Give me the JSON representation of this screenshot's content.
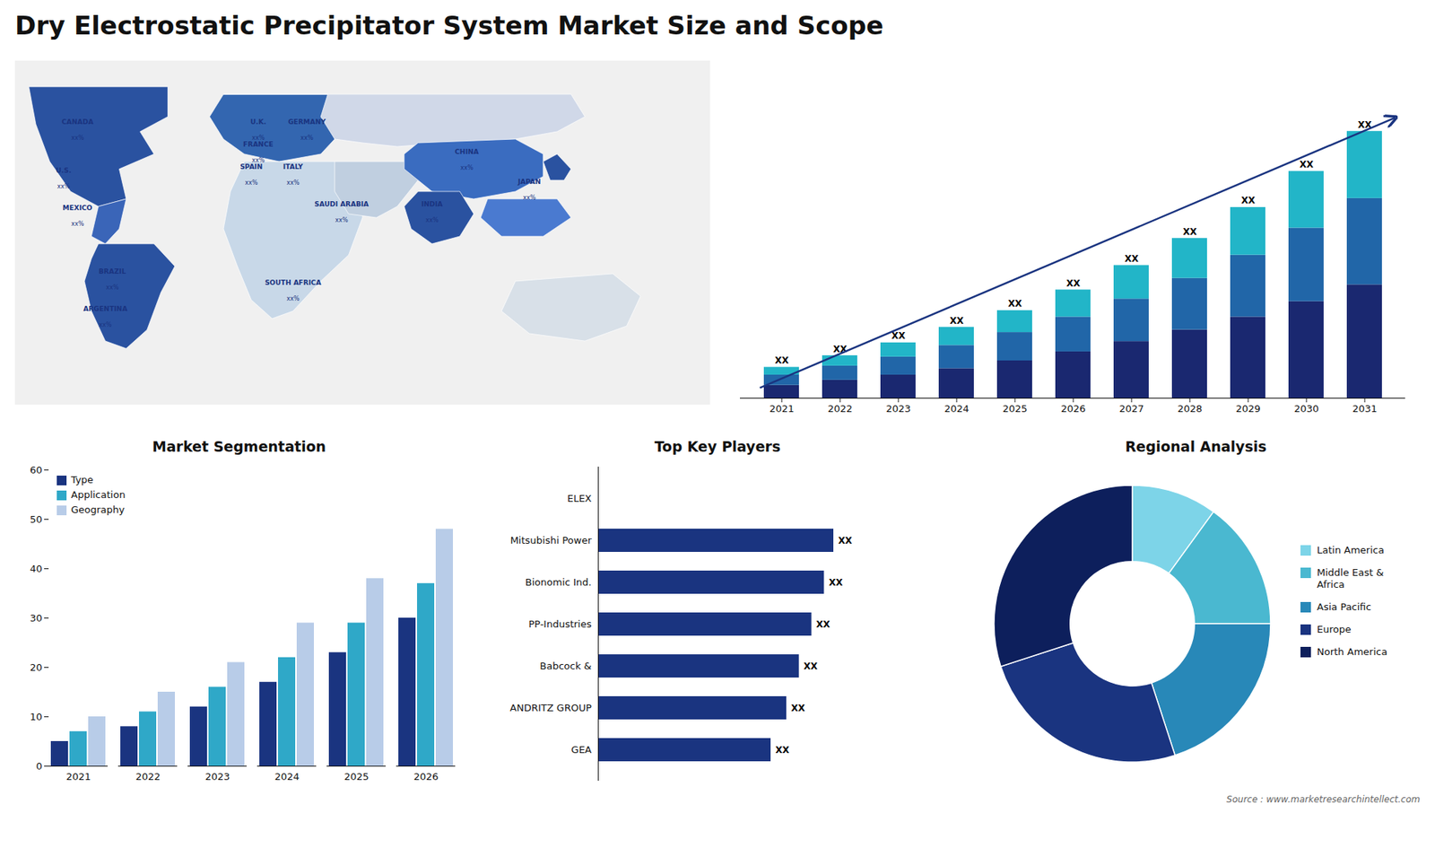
{
  "title": "Dry Electrostatic Precipitator System Market Size and Scope",
  "annotations": [
    "Source : www.marketresearchintellect.com"
  ],
  "chart_data": [
    {
      "type": "map",
      "labels": [
        {
          "name": "CANADA",
          "sub": "xx%"
        },
        {
          "name": "U.S.",
          "sub": "xx%"
        },
        {
          "name": "MEXICO",
          "sub": "xx%"
        },
        {
          "name": "BRAZIL",
          "sub": "xx%"
        },
        {
          "name": "ARGENTINA",
          "sub": "xx%"
        },
        {
          "name": "U.K.",
          "sub": "xx%"
        },
        {
          "name": "FRANCE",
          "sub": "xx%"
        },
        {
          "name": "SPAIN",
          "sub": "xx%"
        },
        {
          "name": "GERMANY",
          "sub": "xx%"
        },
        {
          "name": "ITALY",
          "sub": "xx%"
        },
        {
          "name": "SAUDI ARABIA",
          "sub": "xx%"
        },
        {
          "name": "SOUTH AFRICA",
          "sub": "xx%"
        },
        {
          "name": "CHINA",
          "sub": "xx%"
        },
        {
          "name": "JAPAN",
          "sub": "xx%"
        },
        {
          "name": "INDIA",
          "sub": "xx%"
        }
      ]
    },
    {
      "type": "bar",
      "stacked": true,
      "categories": [
        "2021",
        "2022",
        "2023",
        "2024",
        "2025",
        "2026",
        "2027",
        "2028",
        "2029",
        "2030",
        "2031"
      ],
      "series": [
        {
          "color": "#1a2870",
          "values": [
            1,
            1.4,
            1.8,
            2.3,
            2.9,
            3.6,
            4.4,
            5.3,
            6.3,
            7.5,
            8.8
          ]
        },
        {
          "color": "#2166a8",
          "values": [
            0.8,
            1.1,
            1.4,
            1.8,
            2.2,
            2.7,
            3.3,
            4.0,
            4.8,
            5.7,
            6.7
          ]
        },
        {
          "color": "#22b5c8",
          "values": [
            0.6,
            0.8,
            1.1,
            1.4,
            1.7,
            2.1,
            2.6,
            3.1,
            3.7,
            4.4,
            5.2
          ]
        }
      ],
      "ylim": [
        0,
        25.875
      ],
      "tick_labels": "x",
      "grid": false,
      "data_labels": true,
      "value_labels": [
        "XX",
        "XX",
        "XX",
        "XX",
        "XX",
        "XX",
        "XX",
        "XX",
        "XX",
        "XX",
        "XX"
      ]
    },
    {
      "type": "bar",
      "title": "Market Segmentation",
      "categories": [
        "2021",
        "2022",
        "2023",
        "2024",
        "2025",
        "2026"
      ],
      "series": [
        {
          "name": "Type",
          "color": "#1a3480",
          "values": [
            5,
            8,
            12,
            17,
            23,
            30
          ]
        },
        {
          "name": "Application",
          "color": "#2fa8c8",
          "values": [
            7,
            11,
            16,
            22,
            29,
            37
          ]
        },
        {
          "name": "Geography",
          "color": "#b8cce8",
          "values": [
            10,
            15,
            21,
            29,
            38,
            48
          ]
        }
      ],
      "ylim": [
        0,
        60
      ],
      "yticks": [
        0,
        10,
        20,
        30,
        40,
        50,
        60
      ],
      "grid": false,
      "legend": "upper left"
    },
    {
      "type": "bar",
      "orientation": "horizontal",
      "title": "Top Key Players",
      "categories": [
        "ELEX",
        "Mitsubishi Power",
        "Bionomic Ind.",
        "PP-Industries",
        "Babcock &",
        "ANDRITZ GROUP",
        "GEA"
      ],
      "values": [
        0,
        7.5,
        7.2,
        6.8,
        6.4,
        6.0,
        5.5
      ],
      "color": "#1a3480",
      "xlim": [
        0,
        10
      ],
      "tick_labels": "y",
      "grid": false,
      "data_labels": true,
      "value_labels": [
        null,
        "XX",
        "XX",
        "XX",
        "XX",
        "XX",
        "XX"
      ]
    },
    {
      "type": "pie",
      "title": "Regional Analysis",
      "categories": [
        "Latin America",
        "Middle East &\nAfrica",
        "Asia Pacific",
        "Europe",
        "North America"
      ],
      "values": [
        10,
        15,
        20,
        25,
        30
      ],
      "colors": [
        "#7dd4e8",
        "#4ab8d0",
        "#2888b8",
        "#1a3480",
        "#0d1f5c"
      ],
      "legend": "right"
    }
  ]
}
